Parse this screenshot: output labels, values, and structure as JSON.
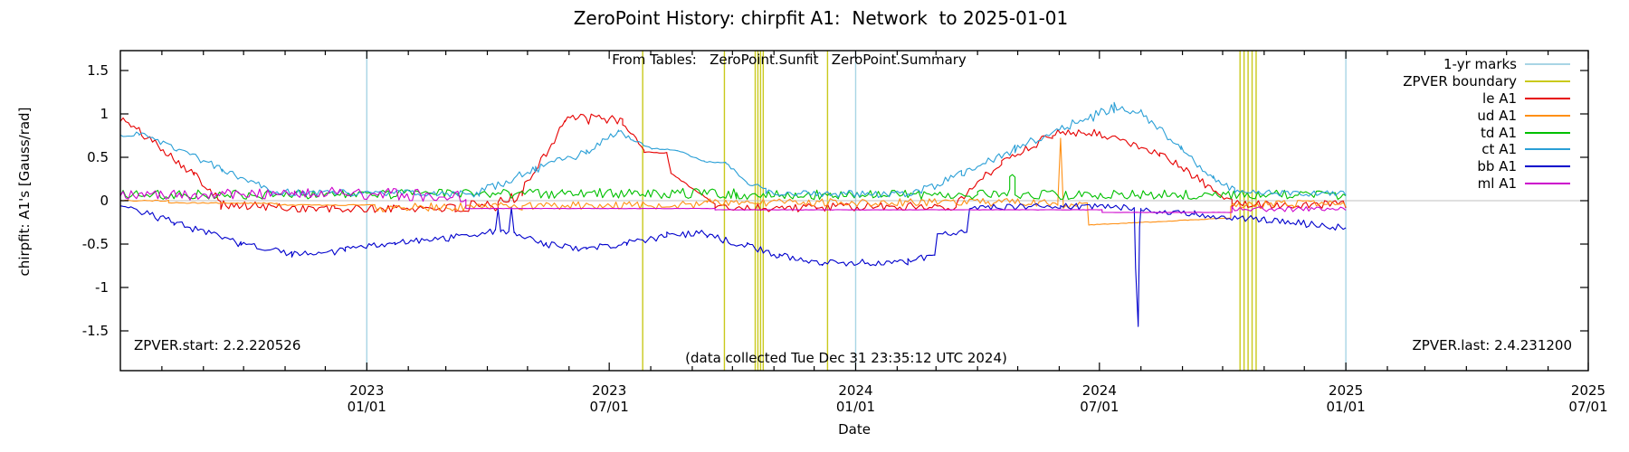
{
  "title": "ZeroPoint History: chirpfit A1:  Network  to 2025-01-01",
  "annotations": {
    "from_tables": "From Tables:   ZeroPoint.Sunfit   ZeroPoint.Summary",
    "zpver_start": "ZPVER.start: 2.2.220526",
    "data_collected": "(data collected Tue Dec 31 23:35:12 UTC 2024)",
    "zpver_last": "ZPVER.last: 2.4.231200"
  },
  "axes": {
    "xlabel": "Date",
    "ylabel": "chirpfit: A1's [Gauss/rad]",
    "y_ticks": [
      {
        "value": 1.5,
        "label": "1.5"
      },
      {
        "value": 1.0,
        "label": "1"
      },
      {
        "value": 0.5,
        "label": "0.5"
      },
      {
        "value": 0.0,
        "label": "0"
      },
      {
        "value": -0.5,
        "label": "-0.5"
      },
      {
        "value": -1.0,
        "label": "-1"
      },
      {
        "value": -1.5,
        "label": "-1.5"
      }
    ],
    "x_major_ticks": [
      {
        "day": 184,
        "line1": "2023",
        "line2": "01/01"
      },
      {
        "day": 365,
        "line1": "2023",
        "line2": "07/01"
      },
      {
        "day": 549,
        "line1": "2024",
        "line2": "01/01"
      },
      {
        "day": 731,
        "line1": "2024",
        "line2": "07/01"
      },
      {
        "day": 915,
        "line1": "2025",
        "line2": "01/01"
      },
      {
        "day": 1096,
        "line1": "2025",
        "line2": "07/01"
      }
    ],
    "x_minor_tick_days": [
      31,
      62,
      92,
      123,
      153,
      215,
      243,
      274,
      304,
      335,
      396,
      427,
      457,
      488,
      518,
      580,
      609,
      640,
      670,
      701,
      762,
      793,
      823,
      854,
      884,
      946,
      974,
      1005,
      1035,
      1066
    ]
  },
  "legend": [
    {
      "label": "1-yr marks",
      "color": "#a8d5e5"
    },
    {
      "label": "ZPVER boundary",
      "color": "#c9c91c"
    },
    {
      "label": "le A1",
      "color": "#e60000"
    },
    {
      "label": "ud A1",
      "color": "#ff9015"
    },
    {
      "label": "td A1",
      "color": "#00c000"
    },
    {
      "label": "ct A1",
      "color": "#2a9fd6"
    },
    {
      "label": "bb A1",
      "color": "#0000cc"
    },
    {
      "label": "ml A1",
      "color": "#cc00cc"
    }
  ],
  "chart_data": {
    "type": "line",
    "title": "ZeroPoint History: chirpfit A1:  Network  to 2025-01-01",
    "xlabel": "Date",
    "ylabel": "chirpfit: A1's [Gauss/rad]",
    "x_unit": "days since 2022-07-01",
    "x_range_days": [
      0,
      1096
    ],
    "data_end_day": 915,
    "ylim": [
      -1.96,
      1.73
    ],
    "grid": false,
    "zero_line": {
      "value": 0,
      "color": "#bfbfbf"
    },
    "legend_position": "top-right-inside",
    "one_year_mark_days": [
      184,
      549,
      915
    ],
    "zpver_boundary_days": [
      390,
      451,
      474,
      476,
      478,
      480,
      528,
      836,
      839,
      842,
      845,
      848
    ],
    "segment_format": [
      "day_start",
      "day_end",
      "value_start",
      "value_end",
      "noise_amplitude"
    ],
    "series": [
      {
        "name": "le A1",
        "color": "#e60000",
        "segments": [
          [
            0,
            30,
            0.95,
            0.62,
            0.05
          ],
          [
            30,
            55,
            0.62,
            0.3,
            0.05
          ],
          [
            55,
            75,
            0.3,
            0.02,
            0.05
          ],
          [
            75,
            160,
            -0.05,
            -0.1,
            0.055
          ],
          [
            160,
            250,
            -0.1,
            -0.08,
            0.05
          ],
          [
            250,
            282,
            -0.08,
            -0.1,
            0.09
          ],
          [
            282,
            300,
            -0.05,
            0.12,
            0.09
          ],
          [
            300,
            332,
            0.12,
            0.92,
            0.07
          ],
          [
            332,
            375,
            0.95,
            0.93,
            0.06
          ],
          [
            375,
            391,
            0.9,
            0.58,
            0.03
          ],
          [
            391,
            408,
            0.56,
            0.55,
            0.006
          ],
          [
            408,
            411,
            0.55,
            0.33,
            0.005
          ],
          [
            411,
            444,
            0.32,
            -0.04,
            0.01
          ],
          [
            444,
            520,
            -0.08,
            -0.08,
            0.05
          ],
          [
            520,
            624,
            -0.08,
            -0.06,
            0.05
          ],
          [
            624,
            658,
            -0.03,
            0.45,
            0.05
          ],
          [
            658,
            696,
            0.45,
            0.76,
            0.05
          ],
          [
            696,
            731,
            0.78,
            0.79,
            0.045
          ],
          [
            731,
            776,
            0.77,
            0.55,
            0.04
          ],
          [
            776,
            830,
            0.55,
            -0.02,
            0.045
          ],
          [
            830,
            915,
            -0.04,
            -0.04,
            0.05
          ]
        ]
      },
      {
        "name": "ud A1",
        "color": "#ff9015",
        "segments": [
          [
            0,
            36,
            0.0,
            0.0,
            0.006
          ],
          [
            36,
            117,
            -0.025,
            -0.03,
            0.006
          ],
          [
            117,
            190,
            -0.05,
            -0.05,
            0.006
          ],
          [
            190,
            300,
            -0.08,
            -0.07,
            0.05
          ],
          [
            300,
            432,
            -0.06,
            -0.05,
            0.045
          ],
          [
            432,
            438,
            -0.05,
            0.0,
            0.01
          ],
          [
            438,
            700,
            -0.02,
            -0.02,
            0.045
          ],
          [
            700,
            702,
            -0.02,
            0.72,
            0
          ],
          [
            702,
            704,
            0.72,
            -0.05,
            0
          ],
          [
            704,
            722,
            -0.05,
            -0.05,
            0.04
          ],
          [
            722,
            723,
            -0.05,
            -0.28,
            0
          ],
          [
            723,
            829,
            -0.28,
            -0.2,
            0.004
          ],
          [
            829,
            915,
            -0.05,
            -0.03,
            0.045
          ]
        ]
      },
      {
        "name": "td A1",
        "color": "#00c000",
        "segments": [
          [
            0,
            330,
            0.07,
            0.08,
            0.055
          ],
          [
            330,
            460,
            0.09,
            0.08,
            0.06
          ],
          [
            460,
            640,
            0.07,
            0.07,
            0.055
          ],
          [
            640,
            664,
            0.08,
            0.1,
            0.06
          ],
          [
            664,
            668,
            0.28,
            0.3,
            0.04
          ],
          [
            668,
            915,
            0.07,
            0.07,
            0.055
          ]
        ]
      },
      {
        "name": "ct A1",
        "color": "#2a9fd6",
        "segments": [
          [
            0,
            14,
            0.74,
            0.77,
            0.035
          ],
          [
            14,
            42,
            0.77,
            0.6,
            0.04
          ],
          [
            42,
            76,
            0.6,
            0.36,
            0.04
          ],
          [
            76,
            113,
            0.36,
            0.12,
            0.04
          ],
          [
            113,
            268,
            0.1,
            0.08,
            0.04
          ],
          [
            268,
            310,
            0.1,
            0.36,
            0.05
          ],
          [
            310,
            348,
            0.36,
            0.56,
            0.05
          ],
          [
            348,
            372,
            0.56,
            0.8,
            0.05
          ],
          [
            372,
            383,
            0.8,
            0.7,
            0.03
          ],
          [
            383,
            397,
            0.7,
            0.6,
            0.015
          ],
          [
            397,
            416,
            0.6,
            0.58,
            0.008
          ],
          [
            416,
            436,
            0.58,
            0.45,
            0.012
          ],
          [
            436,
            452,
            0.45,
            0.44,
            0.008
          ],
          [
            452,
            468,
            0.44,
            0.22,
            0.02
          ],
          [
            468,
            482,
            0.22,
            0.12,
            0.03
          ],
          [
            482,
            592,
            0.09,
            0.07,
            0.04
          ],
          [
            592,
            628,
            0.08,
            0.3,
            0.05
          ],
          [
            628,
            668,
            0.3,
            0.6,
            0.05
          ],
          [
            668,
            705,
            0.6,
            0.86,
            0.05
          ],
          [
            705,
            742,
            0.86,
            1.06,
            0.06
          ],
          [
            742,
            762,
            1.08,
            1.03,
            0.06
          ],
          [
            762,
            792,
            1.0,
            0.6,
            0.05
          ],
          [
            792,
            816,
            0.6,
            0.25,
            0.04
          ],
          [
            816,
            832,
            0.25,
            0.12,
            0.04
          ],
          [
            832,
            915,
            0.1,
            0.08,
            0.04
          ]
        ]
      },
      {
        "name": "bb A1",
        "color": "#0000cc",
        "segments": [
          [
            0,
            40,
            -0.06,
            -0.25,
            0.04
          ],
          [
            40,
            90,
            -0.25,
            -0.5,
            0.04
          ],
          [
            90,
            128,
            -0.5,
            -0.62,
            0.04
          ],
          [
            128,
            168,
            -0.62,
            -0.58,
            0.04
          ],
          [
            168,
            205,
            -0.56,
            -0.48,
            0.04
          ],
          [
            205,
            245,
            -0.48,
            -0.44,
            0.04
          ],
          [
            245,
            280,
            -0.43,
            -0.34,
            0.045
          ],
          [
            280,
            282,
            -0.34,
            -0.1,
            0
          ],
          [
            282,
            284,
            -0.1,
            -0.36,
            0
          ],
          [
            284,
            290,
            -0.36,
            -0.35,
            0.03
          ],
          [
            290,
            292,
            -0.35,
            -0.08,
            0
          ],
          [
            292,
            294,
            -0.08,
            -0.37,
            0
          ],
          [
            294,
            318,
            -0.38,
            -0.5,
            0.04
          ],
          [
            318,
            348,
            -0.5,
            -0.56,
            0.04
          ],
          [
            348,
            378,
            -0.55,
            -0.49,
            0.04
          ],
          [
            378,
            408,
            -0.48,
            -0.41,
            0.04
          ],
          [
            408,
            438,
            -0.4,
            -0.37,
            0.04
          ],
          [
            438,
            468,
            -0.4,
            -0.52,
            0.04
          ],
          [
            468,
            492,
            -0.52,
            -0.63,
            0.04
          ],
          [
            492,
            524,
            -0.63,
            -0.71,
            0.04
          ],
          [
            524,
            588,
            -0.72,
            -0.7,
            0.04
          ],
          [
            588,
            608,
            -0.68,
            -0.63,
            0.04
          ],
          [
            608,
            610,
            -0.63,
            -0.38,
            0
          ],
          [
            610,
            632,
            -0.38,
            -0.36,
            0.03
          ],
          [
            632,
            634,
            -0.36,
            -0.1,
            0
          ],
          [
            634,
            702,
            -0.08,
            -0.06,
            0.035
          ],
          [
            702,
            757,
            -0.06,
            -0.08,
            0.035
          ],
          [
            757,
            758,
            -0.08,
            -0.78,
            0
          ],
          [
            758,
            760,
            -0.78,
            -1.45,
            0
          ],
          [
            760,
            761,
            -1.45,
            -0.3,
            0
          ],
          [
            761,
            762,
            -0.3,
            -0.09,
            0
          ],
          [
            762,
            802,
            -0.1,
            -0.15,
            0.035
          ],
          [
            802,
            852,
            -0.15,
            -0.22,
            0.04
          ],
          [
            852,
            915,
            -0.22,
            -0.31,
            0.04
          ]
        ]
      },
      {
        "name": "ml A1",
        "color": "#cc00cc",
        "segments": [
          [
            0,
            130,
            0.06,
            0.08,
            0.06
          ],
          [
            130,
            258,
            0.1,
            0.05,
            0.07
          ],
          [
            258,
            444,
            -0.09,
            -0.09,
            0.002
          ],
          [
            444,
            733,
            -0.105,
            -0.105,
            0.002
          ],
          [
            733,
            830,
            -0.135,
            -0.135,
            0.002
          ],
          [
            830,
            915,
            -0.1,
            -0.1,
            0.03
          ]
        ]
      }
    ]
  }
}
